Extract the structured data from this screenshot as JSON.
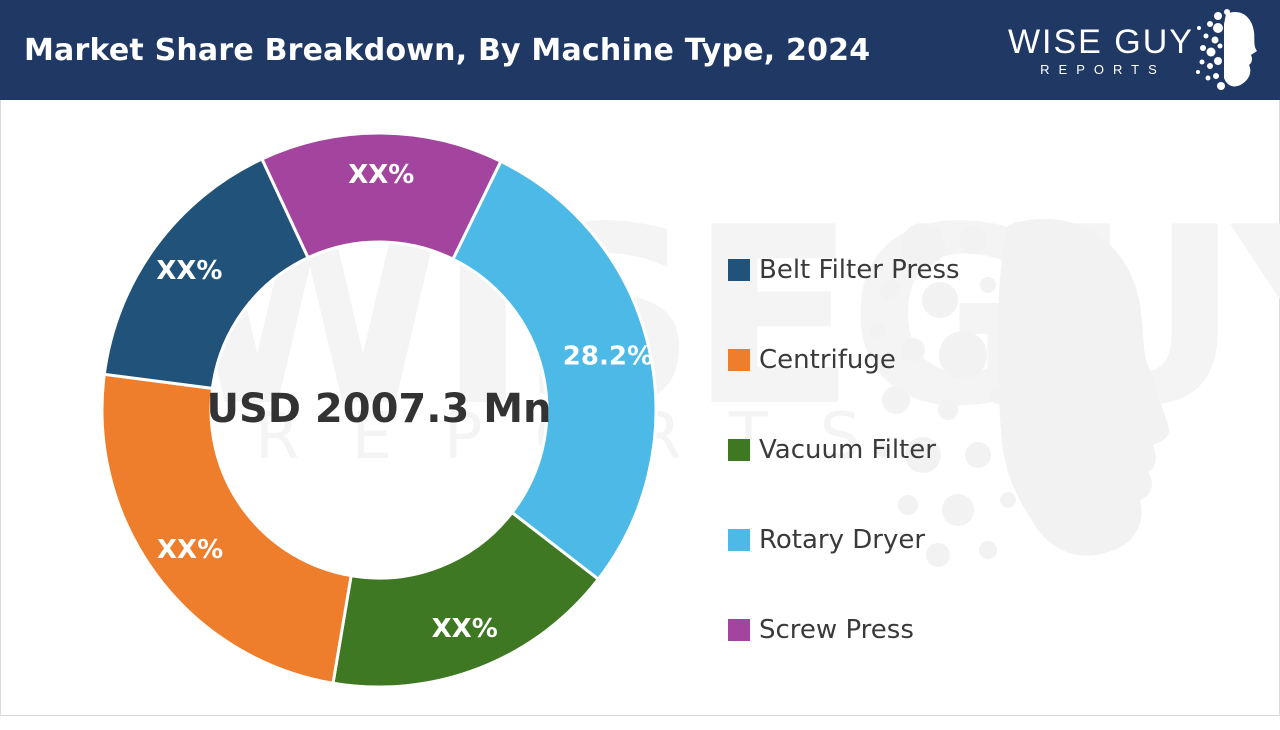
{
  "header": {
    "title": "Market Share Breakdown, By Machine Type, 2024",
    "logo": {
      "line1": "WISE GUY",
      "line2": "REPORTS"
    }
  },
  "watermark": {
    "line1": "WISEGUY",
    "line2": "REPORTS"
  },
  "colors": {
    "header_bg": "#203864",
    "title_text": "#ffffff",
    "legend_text": "#3a3a3a",
    "center_text": "#333333",
    "watermark": "#f4f4f4",
    "frame_border": "#d9d9d9"
  },
  "chart_data": {
    "type": "pie",
    "subtype": "donut",
    "title": "Market Share Breakdown, By Machine Type, 2024",
    "center_label": "USD 2007.3 Mn",
    "legend_position": "right",
    "start_angle_deg": -25,
    "donut_hole_ratio": 0.61,
    "slices": [
      {
        "name": "Belt Filter Press",
        "label": "XX%",
        "value": 16.0,
        "color": "#21537a"
      },
      {
        "name": "Centrifuge",
        "label": "XX%",
        "value": 24.4,
        "color": "#ee7d2c"
      },
      {
        "name": "Vacuum Filter",
        "label": "XX%",
        "value": 17.2,
        "color": "#3e7823"
      },
      {
        "name": "Rotary Dryer",
        "label": "28.2%",
        "value": 28.2,
        "color": "#4db9e7"
      },
      {
        "name": "Screw Press",
        "label": "XX%",
        "value": 14.2,
        "color": "#a3459e"
      }
    ]
  }
}
